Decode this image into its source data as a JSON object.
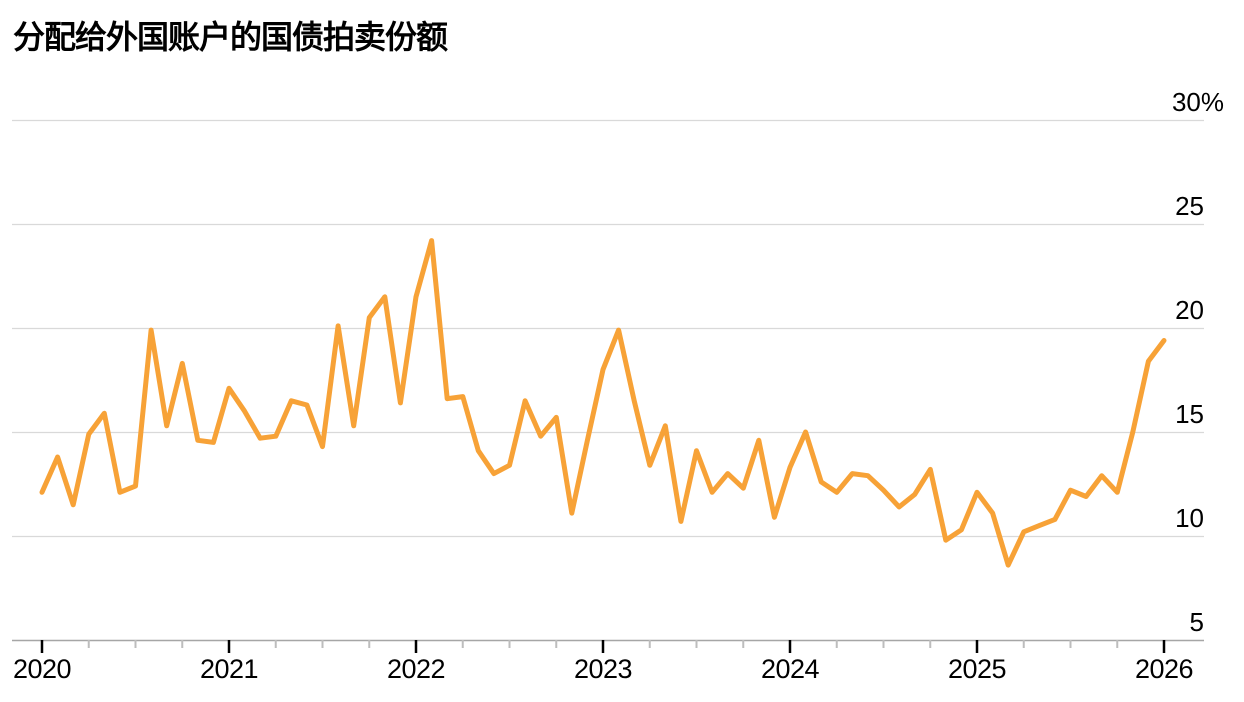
{
  "title": "分配给外国账户的国债拍卖份额",
  "colors": {
    "background": "#FFFFFF",
    "line": "#F7A237",
    "gridline": "#D9D9D9",
    "axis_line": "#A6A6A6",
    "tick_major": "#000000",
    "tick_minor": "#BDBDBD",
    "text": "#000000"
  },
  "chart_data": {
    "type": "line",
    "title": "分配给外国账户的国债拍卖份额",
    "ylabel": "",
    "xlabel": "",
    "unit": "%",
    "frequency": "monthly",
    "start": "2020-01",
    "end": "2026-01",
    "values": [
      12.1,
      13.8,
      11.5,
      14.9,
      15.9,
      12.1,
      12.4,
      19.9,
      15.3,
      18.3,
      14.6,
      14.5,
      17.1,
      16.0,
      14.7,
      14.8,
      16.5,
      16.3,
      14.3,
      20.1,
      15.3,
      20.5,
      21.5,
      16.4,
      21.5,
      24.2,
      16.6,
      16.7,
      14.1,
      13.0,
      13.4,
      16.5,
      14.8,
      15.7,
      11.1,
      14.6,
      18.0,
      19.9,
      16.5,
      13.4,
      15.3,
      10.7,
      14.1,
      12.1,
      13.0,
      12.3,
      14.6,
      10.9,
      13.3,
      15.0,
      12.6,
      12.1,
      13.0,
      12.9,
      12.2,
      11.4,
      12.0,
      13.2,
      9.8,
      10.3,
      12.1,
      11.1,
      8.6,
      10.2,
      10.5,
      10.8,
      12.2,
      11.9,
      12.9,
      12.1,
      15.0,
      18.4,
      19.4
    ],
    "x_tick_labels": [
      "2020",
      "2021",
      "2022",
      "2023",
      "2024",
      "2025",
      "2026"
    ],
    "y_tick_values": [
      5,
      10,
      15,
      20,
      25,
      30
    ],
    "y_tick_labels": [
      "5",
      "10",
      "15",
      "20",
      "25",
      "30%"
    ],
    "ylim": [
      5,
      30
    ],
    "grid": "horizontal",
    "legend": "none",
    "minor_ticks": "quarterly"
  }
}
